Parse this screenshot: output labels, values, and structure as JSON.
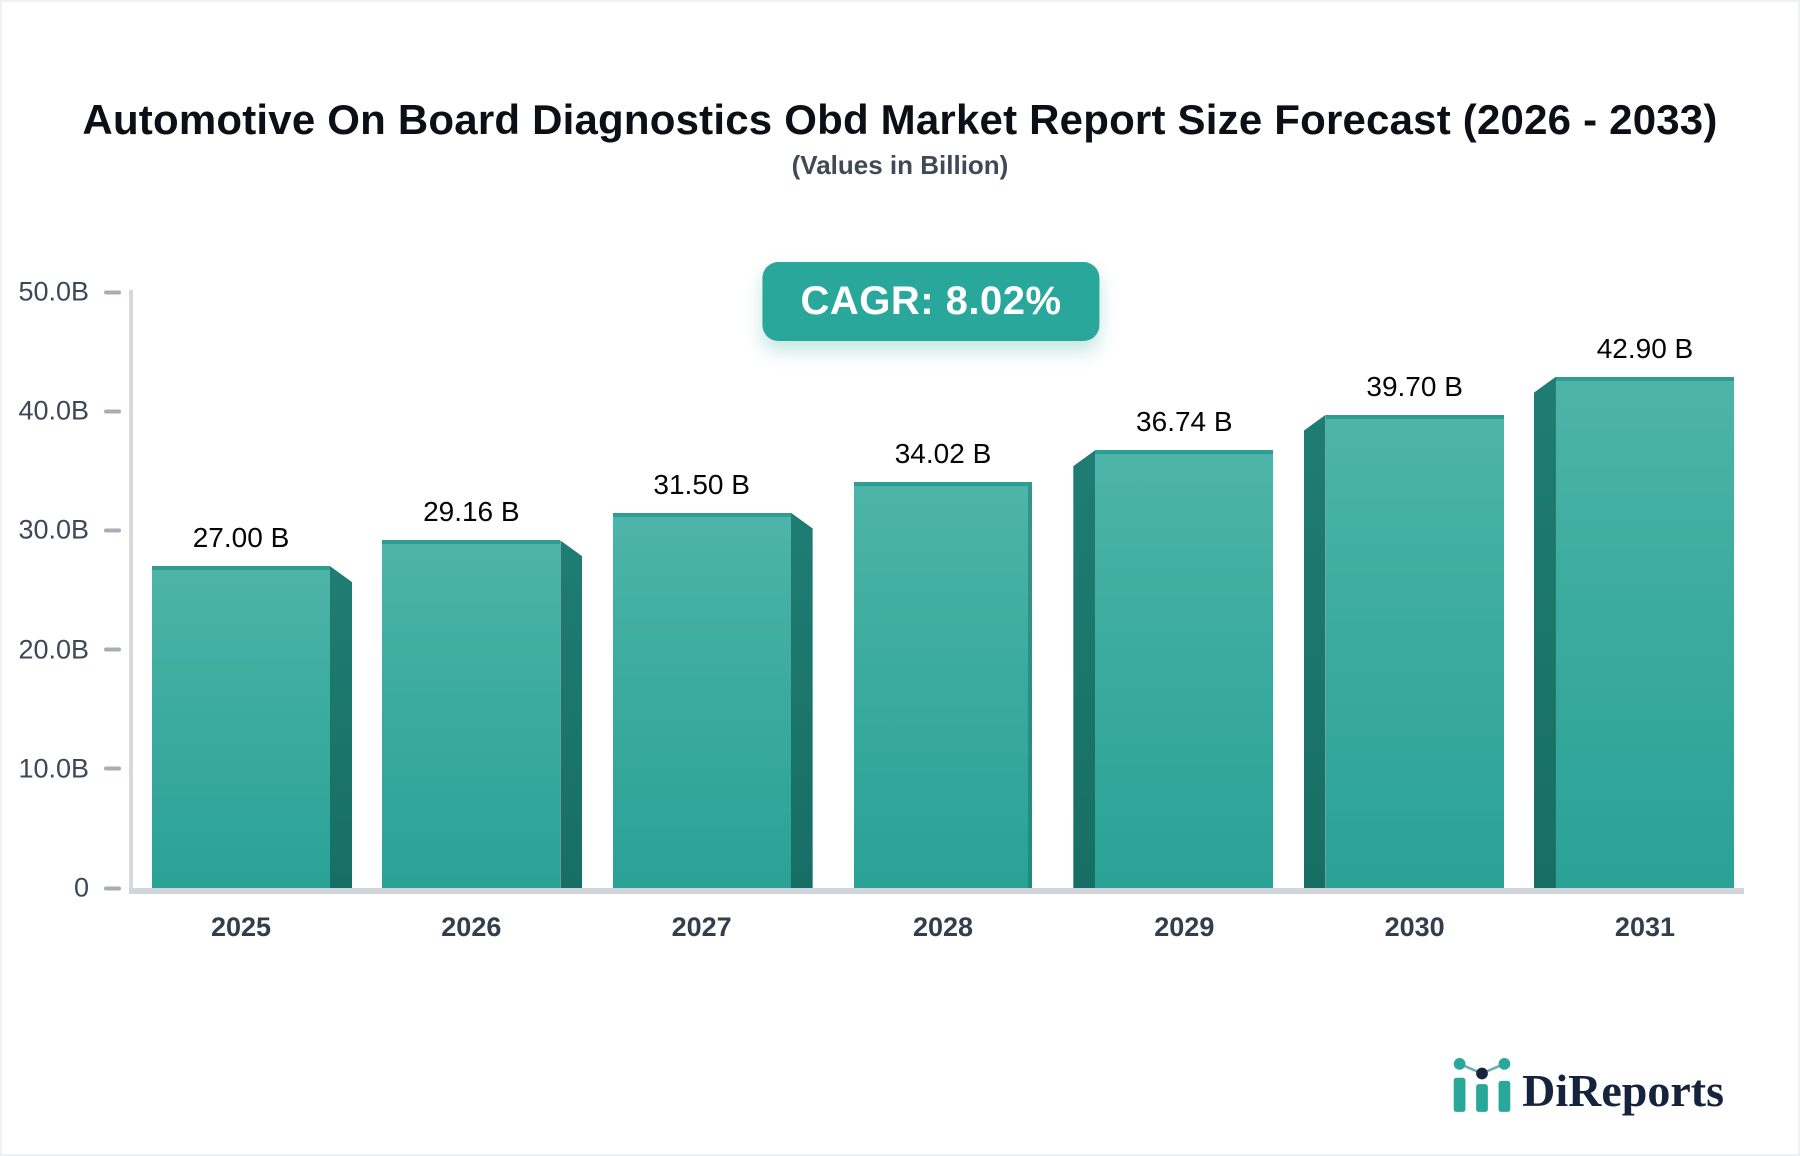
{
  "header": {
    "title": "Automotive On Board Diagnostics Obd Market Report Size Forecast (2026 - 2033)",
    "subtitle": "(Values in Billion)"
  },
  "badge": {
    "label": "CAGR: 8.02%",
    "background": "#2aa79b",
    "text_color": "#ffffff"
  },
  "chart_data": {
    "type": "bar",
    "title": "Automotive On Board Diagnostics Obd Market Report Size Forecast (2026 - 2033)",
    "subtitle": "(Values in Billion)",
    "categories": [
      "2025",
      "2026",
      "2027",
      "2028",
      "2029",
      "2030",
      "2031"
    ],
    "values": [
      27.0,
      29.16,
      31.5,
      34.02,
      36.74,
      39.7,
      42.9
    ],
    "value_labels": [
      "27.00 B",
      "29.16 B",
      "31.50 B",
      "34.02 B",
      "36.74 B",
      "39.70 B",
      "42.90 B"
    ],
    "y_ticks": [
      "50.0B",
      "40.0B",
      "30.0B",
      "20.0B",
      "10.0B",
      "0"
    ],
    "ylim": [
      0,
      50
    ],
    "xlabel": "",
    "ylabel": "",
    "grid": false,
    "legend": false,
    "annotation": "CAGR: 8.02%",
    "bar_color_top": "#4db4a9",
    "bar_color_bottom": "#2aa296",
    "bar_side_color": "#1f7d73",
    "bar_top_edge_color": "#2f9d92",
    "axis_color": "#d6d9dd",
    "tick_color": "#a7aeb8",
    "label_color": "#3d4856"
  },
  "logo": {
    "text": "DiReports",
    "text_color": "#15233c",
    "icon_color": "#2aa79b",
    "icon_dot_dark": "#16243d"
  }
}
